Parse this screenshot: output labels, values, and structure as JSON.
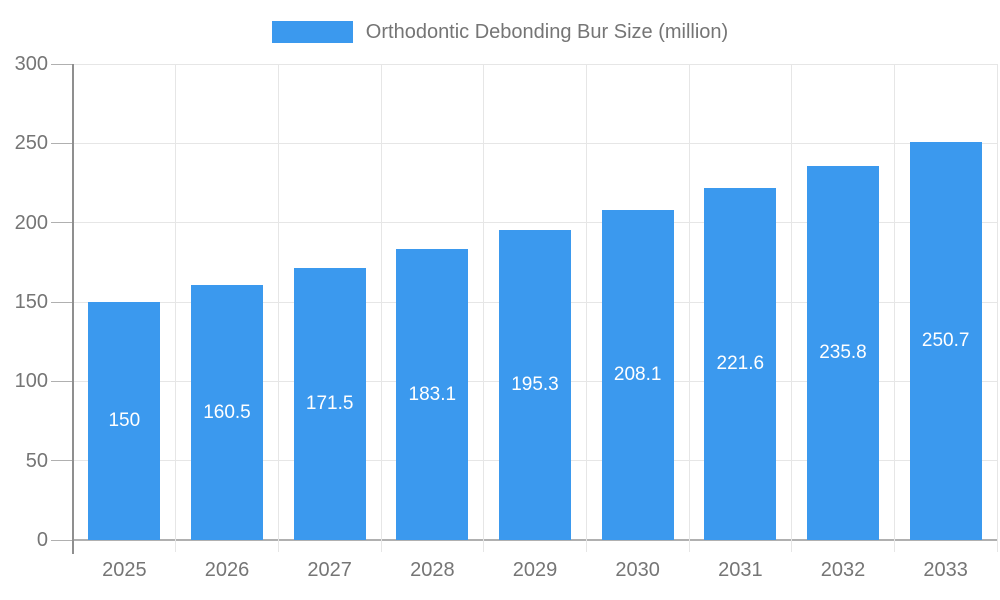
{
  "chart_data": {
    "type": "bar",
    "title": "Orthodontic Debonding Bur Size (million)",
    "categories": [
      "2025",
      "2026",
      "2027",
      "2028",
      "2029",
      "2030",
      "2031",
      "2032",
      "2033"
    ],
    "series": [
      {
        "name": "Orthodontic Debonding Bur Size (million)",
        "values": [
          150,
          160.5,
          171.5,
          183.1,
          195.3,
          208.1,
          221.6,
          235.8,
          250.7
        ]
      }
    ],
    "value_labels": [
      "150",
      "160.5",
      "171.5",
      "183.1",
      "195.3",
      "208.1",
      "221.6",
      "235.8",
      "250.7"
    ],
    "xlabel": "",
    "ylabel": "",
    "ylim": [
      0,
      300
    ],
    "ytick_step": 50,
    "yticks": [
      "0",
      "50",
      "100",
      "150",
      "200",
      "250",
      "300"
    ],
    "grid": true,
    "legend_position": "top",
    "colors": {
      "bar": "#3B99EE",
      "grid": "#e6e6e6",
      "axis": "#8f8f8f",
      "tick": "#b0b0b0",
      "text": "#757575",
      "bar_label": "#ffffff",
      "background": "#ffffff"
    }
  }
}
